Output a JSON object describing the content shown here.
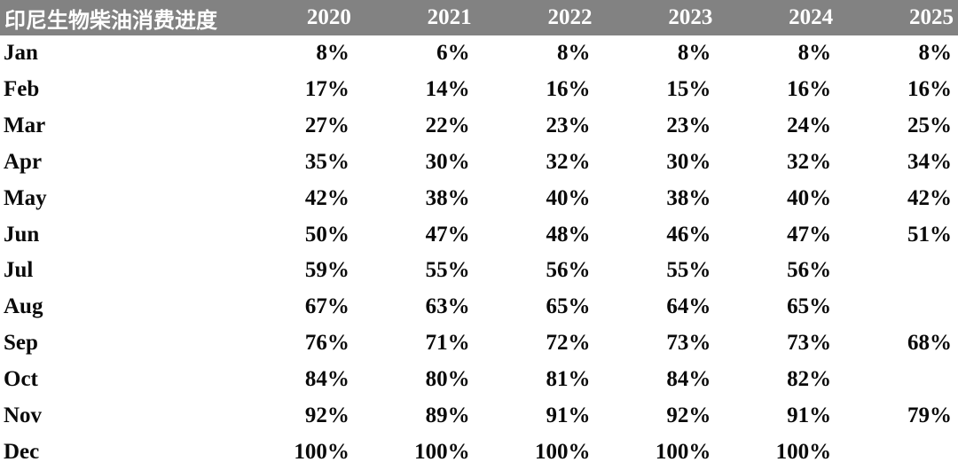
{
  "colors": {
    "header_background": "#828282",
    "header_text": "#ffffff",
    "body_text": "#0a0a0a",
    "page_background": "#ffffff"
  },
  "chart_data": {
    "type": "table",
    "title": "印尼生物柴油消费进度",
    "columns": [
      "2020",
      "2021",
      "2022",
      "2023",
      "2024",
      "2025"
    ],
    "rows": [
      {
        "label": "Jan",
        "values": [
          "8%",
          "6%",
          "8%",
          "8%",
          "8%",
          "8%"
        ]
      },
      {
        "label": "Feb",
        "values": [
          "17%",
          "14%",
          "16%",
          "15%",
          "16%",
          "16%"
        ]
      },
      {
        "label": "Mar",
        "values": [
          "27%",
          "22%",
          "23%",
          "23%",
          "24%",
          "25%"
        ]
      },
      {
        "label": "Apr",
        "values": [
          "35%",
          "30%",
          "32%",
          "30%",
          "32%",
          "34%"
        ]
      },
      {
        "label": "May",
        "values": [
          "42%",
          "38%",
          "40%",
          "38%",
          "40%",
          "42%"
        ]
      },
      {
        "label": "Jun",
        "values": [
          "50%",
          "47%",
          "48%",
          "46%",
          "47%",
          "51%"
        ]
      },
      {
        "label": "Jul",
        "values": [
          "59%",
          "55%",
          "56%",
          "55%",
          "56%",
          ""
        ]
      },
      {
        "label": "Aug",
        "values": [
          "67%",
          "63%",
          "65%",
          "64%",
          "65%",
          ""
        ]
      },
      {
        "label": "Sep",
        "values": [
          "76%",
          "71%",
          "72%",
          "73%",
          "73%",
          "68%"
        ]
      },
      {
        "label": "Oct",
        "values": [
          "84%",
          "80%",
          "81%",
          "84%",
          "82%",
          ""
        ]
      },
      {
        "label": "Nov",
        "values": [
          "92%",
          "89%",
          "91%",
          "92%",
          "91%",
          "79%"
        ]
      },
      {
        "label": "Dec",
        "values": [
          "100%",
          "100%",
          "100%",
          "100%",
          "100%",
          ""
        ]
      }
    ]
  }
}
